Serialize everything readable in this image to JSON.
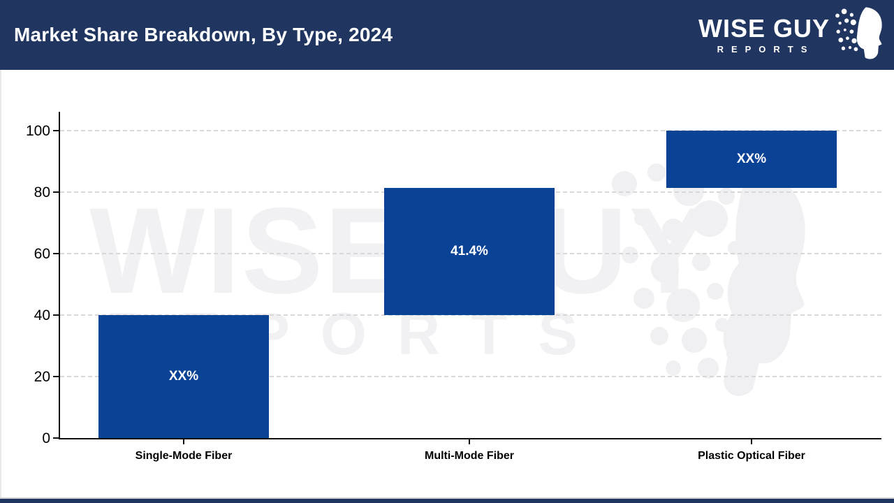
{
  "header": {
    "title": "Market Share Breakdown, By Type, 2024",
    "bg_color": "#20355f",
    "logo": {
      "line1": "WISE GUY",
      "line2": "REPORTS"
    }
  },
  "watermark": {
    "line1": "WISE GUY",
    "line2": "REPORTS"
  },
  "chart_data": {
    "type": "bar",
    "subtype": "floating-segment-waterfall",
    "title": "Market Share Breakdown, By Type, 2024",
    "categories": [
      "Single-Mode Fiber",
      "Multi-Mode Fiber",
      "Plastic Optical Fiber"
    ],
    "bars": [
      {
        "category": "Single-Mode Fiber",
        "start": 0,
        "end": 40,
        "label": "XX%"
      },
      {
        "category": "Multi-Mode Fiber",
        "start": 40,
        "end": 81.4,
        "label": "41.4%"
      },
      {
        "category": "Plastic Optical Fiber",
        "start": 81.4,
        "end": 100,
        "label": "XX%"
      }
    ],
    "yticks": [
      0,
      20,
      40,
      60,
      80,
      100
    ],
    "ylim": [
      0,
      105
    ],
    "xlabel": "",
    "ylabel": "",
    "grid": "horizontal-dashed",
    "legend": "none",
    "bar_color": "#0a4296",
    "bar_label_color": "#ffffff",
    "axis_color": "#111111",
    "gridline_color": "#d8d8d8"
  }
}
